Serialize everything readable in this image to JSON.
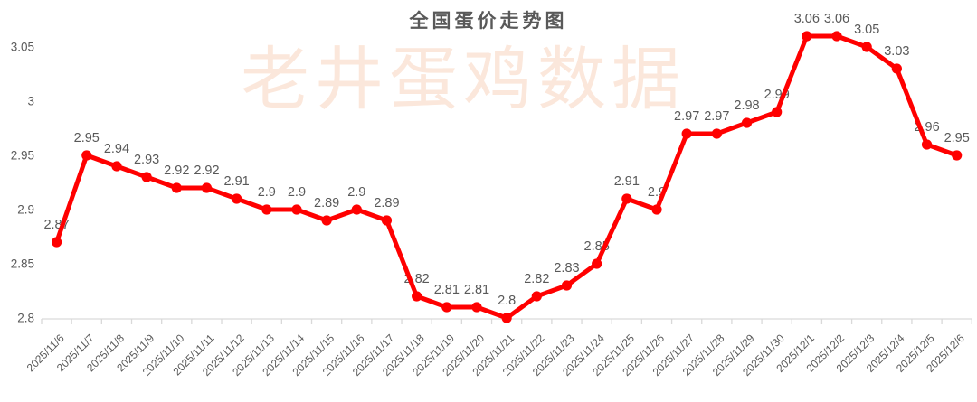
{
  "chart_data": {
    "type": "line",
    "title": "全国蛋价走势图",
    "watermark": "老井蛋鸡数据",
    "categories": [
      "2025/11/6",
      "2025/11/7",
      "2025/11/8",
      "2025/11/9",
      "2025/11/10",
      "2025/11/11",
      "2025/11/12",
      "2025/11/13",
      "2025/11/14",
      "2025/11/15",
      "2025/11/16",
      "2025/11/17",
      "2025/11/18",
      "2025/11/19",
      "2025/11/20",
      "2025/11/21",
      "2025/11/22",
      "2025/11/23",
      "2025/11/24",
      "2025/11/25",
      "2025/11/26",
      "2025/11/27",
      "2025/11/28",
      "2025/11/29",
      "2025/11/30",
      "2025/12/1",
      "2025/12/2",
      "2025/12/3",
      "2025/12/4",
      "2025/12/5",
      "2025/12/6"
    ],
    "values": [
      2.87,
      2.95,
      2.94,
      2.93,
      2.92,
      2.92,
      2.91,
      2.9,
      2.9,
      2.89,
      2.9,
      2.89,
      2.82,
      2.81,
      2.81,
      2.8,
      2.82,
      2.83,
      2.85,
      2.91,
      2.9,
      2.97,
      2.97,
      2.98,
      2.99,
      3.06,
      3.06,
      3.05,
      3.03,
      2.96,
      2.95
    ],
    "point_labels": [
      "2.87",
      "2.95",
      "2.94",
      "2.93",
      "2.92",
      "2.92",
      "2.91",
      "2.9",
      "2.9",
      "2.89",
      "2.9",
      "2.89",
      "2.82",
      "2.81",
      "2.81",
      "2.8",
      "2.82",
      "2.83",
      "2.85",
      "2.91",
      "2.9",
      "2.97",
      "2.97",
      "2.98",
      "2.99",
      "3.06",
      "3.06",
      "3.05",
      "3.03",
      "2.96",
      "2.95"
    ],
    "y_ticks": [
      "2.8",
      "2.85",
      "2.9",
      "2.95",
      "3",
      "3.05"
    ],
    "ylim": [
      2.8,
      3.06
    ],
    "xlabel": "",
    "ylabel": "",
    "grid": false,
    "legend": "none",
    "colors": {
      "line": "#FF0000",
      "marker": "#FF0000",
      "data_label": "#595959",
      "axis_label": "#595959",
      "axis_line": "#D9D9D9",
      "title": "#595959",
      "watermark": "#FBE7DB",
      "background": "#FFFFFF"
    }
  }
}
